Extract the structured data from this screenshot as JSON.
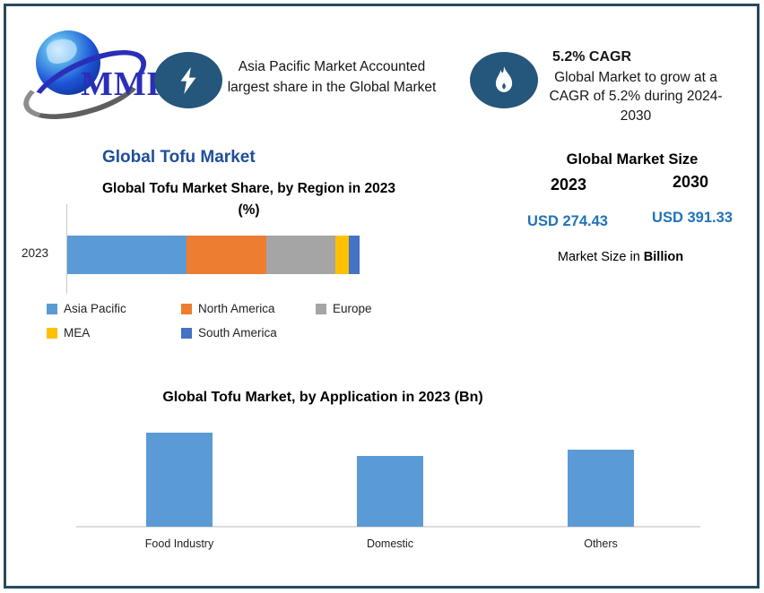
{
  "frame": {
    "border_color": "#264A5E",
    "background": "#FFFFFF"
  },
  "logo": {
    "name": "MMR",
    "text_color": "#2A2FB8"
  },
  "highlights": [
    {
      "icon": "lightning-icon",
      "icon_bg": "#25567B",
      "text": "Asia Pacific Market Accounted largest share in the Global Market"
    },
    {
      "icon": "flame-icon",
      "icon_bg": "#25567B",
      "title": "5.2% CAGR",
      "text": "Global Market to grow at a CAGR of 5.2% during 2024-2030"
    }
  ],
  "page_title": "Global Tofu Market",
  "market_size": {
    "title": "Global Market Size",
    "columns": [
      {
        "year": "2023",
        "value": "USD 274.43"
      },
      {
        "year": "2030",
        "value": "USD 391.33"
      }
    ],
    "note_regular": "Market Size in ",
    "note_bold": "Billion",
    "value_color": "#2173B9"
  },
  "chart_data": [
    {
      "type": "bar",
      "subtype": "horizontal-stacked",
      "title": "Global Tofu Market Share, by Region in 2023 (%)",
      "title_lines": [
        "Global Tofu Market Share, by Region in 2023",
        "(%)"
      ],
      "categories": [
        "2023"
      ],
      "series": [
        {
          "name": "Asia Pacific",
          "value": 40.7,
          "color": "#5B9BD5"
        },
        {
          "name": "North America",
          "value": 27.5,
          "color": "#ED7D31"
        },
        {
          "name": "Europe",
          "value": 23.4,
          "color": "#A5A5A5"
        },
        {
          "name": "MEA",
          "value": 4.6,
          "color": "#FFC000"
        },
        {
          "name": "South America",
          "value": 3.8,
          "color": "#4472C4"
        }
      ],
      "unit": "%",
      "legend_position": "bottom",
      "grid": false
    },
    {
      "type": "bar",
      "subtype": "vertical",
      "title": "Global Tofu Market, by Application in 2023 (Bn)",
      "categories": [
        "Food Industry",
        "Domestic",
        "Others"
      ],
      "values": [
        107,
        80,
        88
      ],
      "unit": "Bn",
      "bar_color": "#5B9BD5",
      "ylim": [
        0,
        110
      ],
      "grid": false
    }
  ]
}
